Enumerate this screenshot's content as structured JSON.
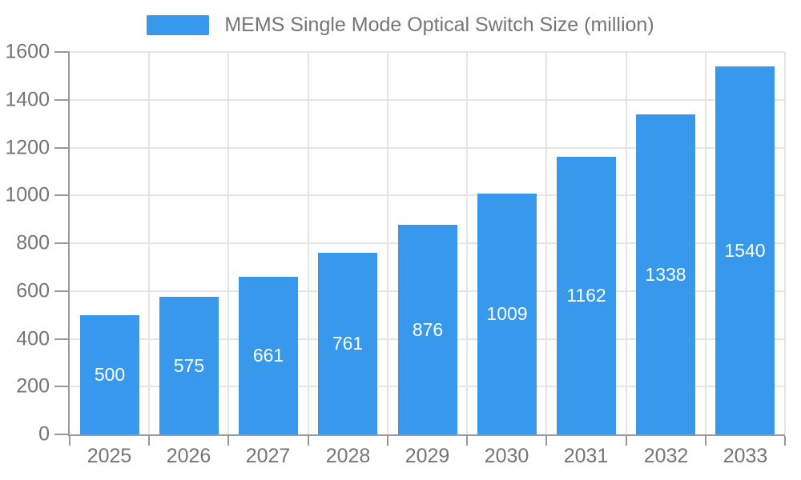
{
  "chart_data": {
    "type": "bar",
    "title": "MEMS Single Mode Optical Switch Size (million)",
    "categories": [
      "2025",
      "2026",
      "2027",
      "2028",
      "2029",
      "2030",
      "2031",
      "2032",
      "2033"
    ],
    "values": [
      500,
      575,
      661,
      761,
      876,
      1009,
      1162,
      1338,
      1540
    ],
    "bar_labels": [
      "500",
      "575",
      "661",
      "761",
      "876",
      "1009",
      "1162",
      "1338",
      "1540"
    ],
    "xlabel": "",
    "ylabel": "",
    "ylim": [
      0,
      1600
    ],
    "ytick_step": 200,
    "ytick_labels": [
      "0",
      "200",
      "400",
      "600",
      "800",
      "1000",
      "1200",
      "1400",
      "1600"
    ],
    "grid": true,
    "legend_position": "top-center",
    "colors": {
      "bar": "#3898EC",
      "bar_label": "#FFFFFF",
      "axis_text": "#757575",
      "axis_line": "#999999",
      "gridline": "#E5E5E5",
      "background": "#FFFFFF"
    }
  }
}
